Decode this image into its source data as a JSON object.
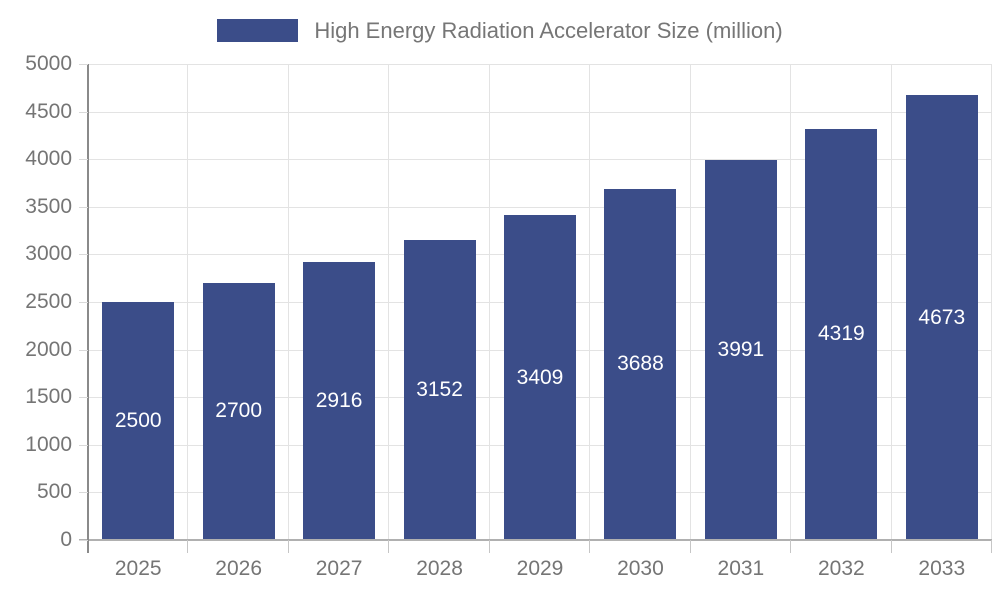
{
  "legend": {
    "label": "High Energy Radiation Accelerator Size (million)"
  },
  "colors": {
    "bar": "#3b4d89",
    "bar_label": "#ffffff",
    "gridline": "#e3e3e3",
    "y_axis_line": "#8a8a8a",
    "x_axis_line": "#b0b0b0",
    "tick_label": "#757575",
    "legend_text": "#767676"
  },
  "chart_data": {
    "type": "bar",
    "title": "High Energy Radiation Accelerator Size (million)",
    "categories": [
      "2025",
      "2026",
      "2027",
      "2028",
      "2029",
      "2030",
      "2031",
      "2032",
      "2033"
    ],
    "values": [
      2500,
      2700,
      2916,
      3152,
      3409,
      3688,
      3991,
      4319,
      4673
    ],
    "value_labels": [
      "2500",
      "2700",
      "2916",
      "3152",
      "3409",
      "3688",
      "3991",
      "4319",
      "4673"
    ],
    "xlabel": "",
    "ylabel": "",
    "ylim": [
      0,
      5000
    ],
    "yticks": [
      0,
      500,
      1000,
      1500,
      2000,
      2500,
      3000,
      3500,
      4000,
      4500,
      5000
    ],
    "grid": true,
    "legend_position": "top-center",
    "bar_labels_inside": true
  }
}
